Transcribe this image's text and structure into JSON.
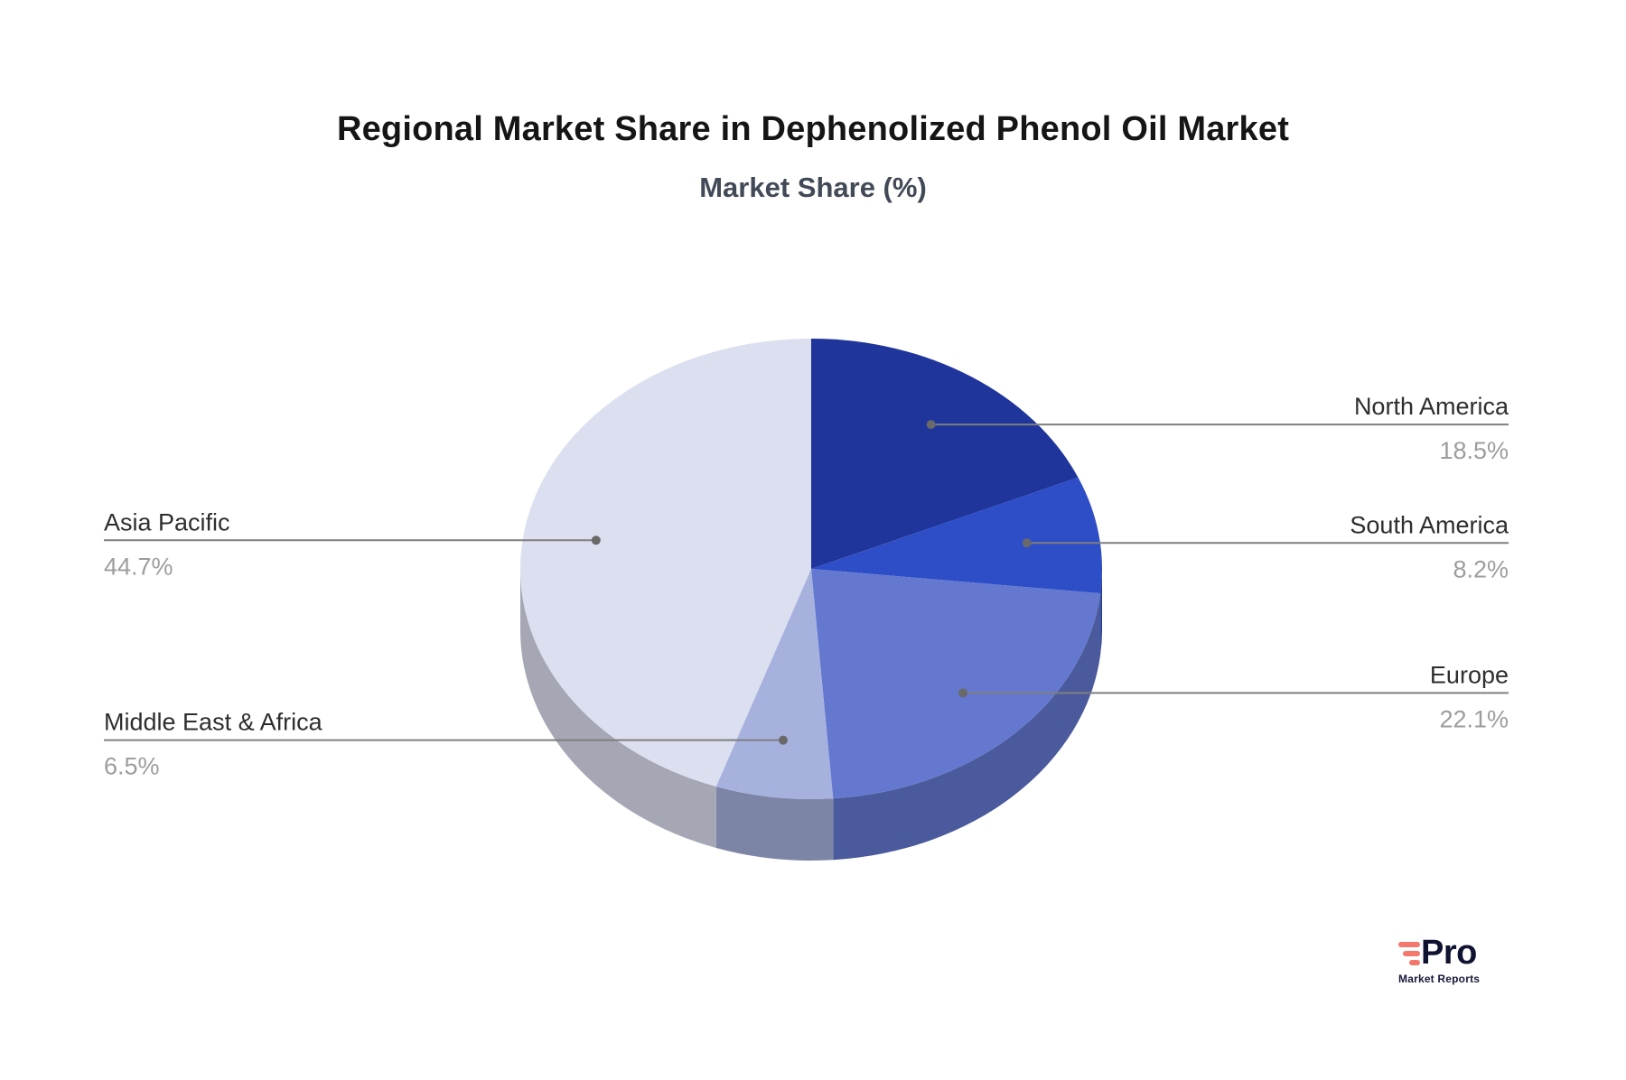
{
  "page": {
    "background": "#ffffff"
  },
  "chart_data": {
    "type": "pie",
    "style": "3d",
    "title": "Regional Market Share in Dephenolized Phenol Oil Market",
    "subtitle": "Market Share (%)",
    "start_angle": "top",
    "direction": "clockwise",
    "legend_position": "none",
    "slices": [
      {
        "label": "North America",
        "value": 18.5,
        "pct_text": "18.5%",
        "color": "#1f359b"
      },
      {
        "label": "South America",
        "value": 8.2,
        "pct_text": "8.2%",
        "color": "#2d4ec6"
      },
      {
        "label": "Europe",
        "value": 22.1,
        "pct_text": "22.1%",
        "color": "#6478d0"
      },
      {
        "label": "Middle East & Africa",
        "value": 6.5,
        "pct_text": "6.5%",
        "color": "#a6b1de"
      },
      {
        "label": "Asia Pacific",
        "value": 44.7,
        "pct_text": "44.7%",
        "color": "#dcdff0"
      }
    ],
    "label_color": "#2e2e2e",
    "pct_color": "#9d9d9d",
    "leader_line_color": "#7f7f7f",
    "leader_dot_color": "#696969"
  },
  "logo": {
    "text": "Pro",
    "subtext": "Market Reports",
    "accent_color": "#f3776c"
  }
}
